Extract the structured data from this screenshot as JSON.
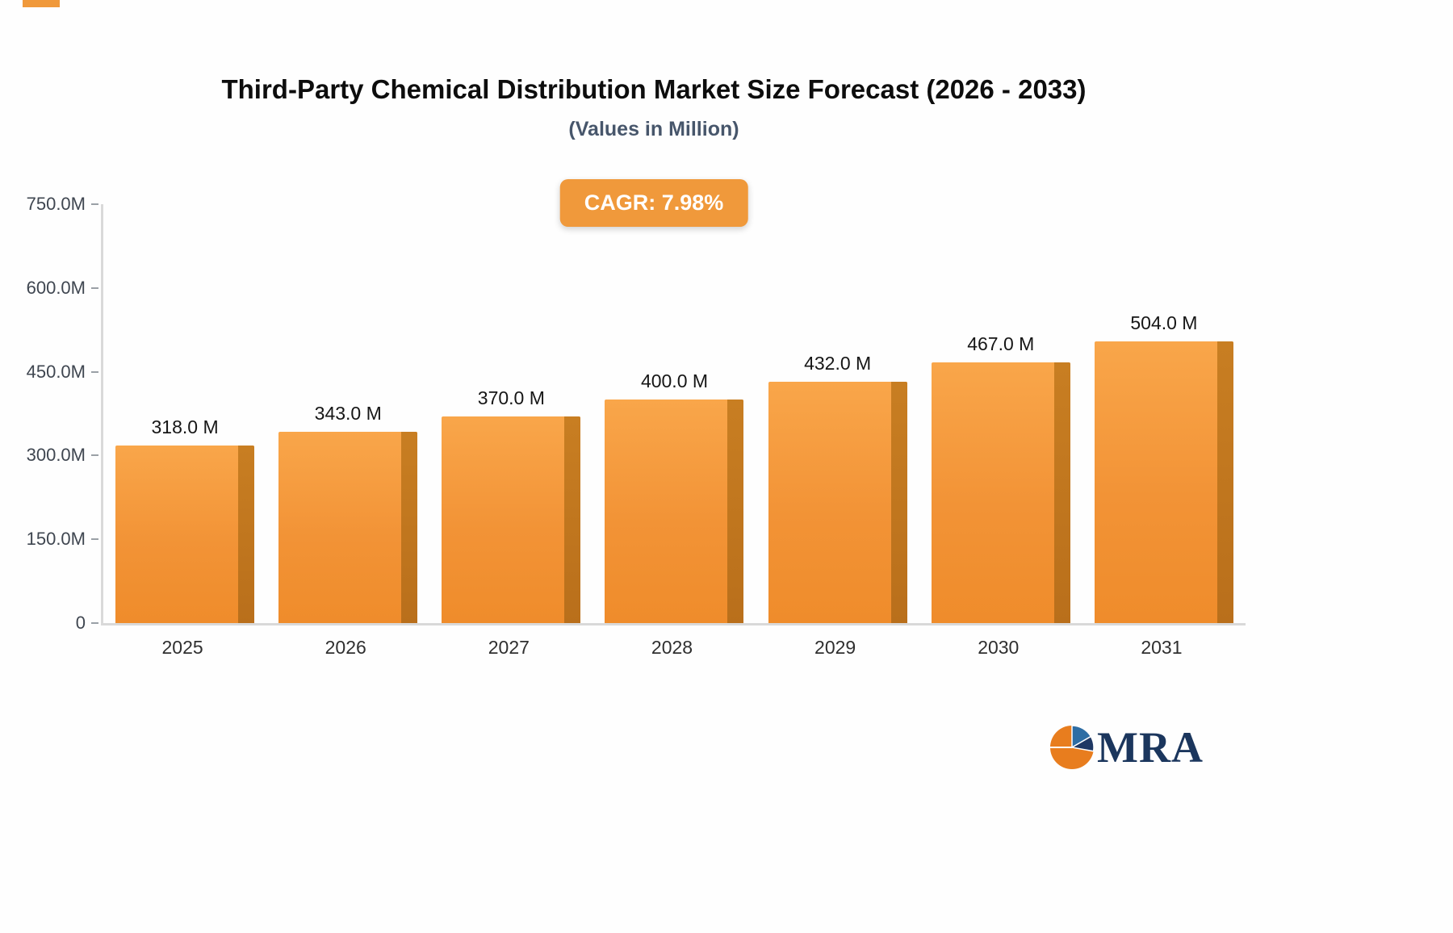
{
  "header": {
    "title": "Third-Party Chemical Distribution Market Size Forecast (2026 - 2033)",
    "subtitle": "(Values in Million)"
  },
  "badge": {
    "label": "CAGR: 7.98%",
    "bg_color": "#F0993B"
  },
  "chart_data": {
    "type": "bar",
    "categories": [
      "2025",
      "2026",
      "2027",
      "2028",
      "2029",
      "2030",
      "2031"
    ],
    "values": [
      318,
      343,
      370,
      400,
      432,
      467,
      504
    ],
    "value_labels": [
      "318.0 M",
      "343.0 M",
      "370.0 M",
      "400.0 M",
      "432.0 M",
      "467.0 M",
      "504.0 M"
    ],
    "title": "Third-Party Chemical Distribution Market Size Forecast (2026 - 2033)",
    "xlabel": "",
    "ylabel": "",
    "ylim": [
      0,
      750
    ],
    "yticks": [
      "750.0M",
      "600.0M",
      "450.0M",
      "300.0M",
      "150.0M",
      "0"
    ],
    "grid": false,
    "legend": "none",
    "bar_color": "#F29336",
    "bar_side_color": "#B96F1B"
  },
  "logo": {
    "text": "MRA"
  }
}
